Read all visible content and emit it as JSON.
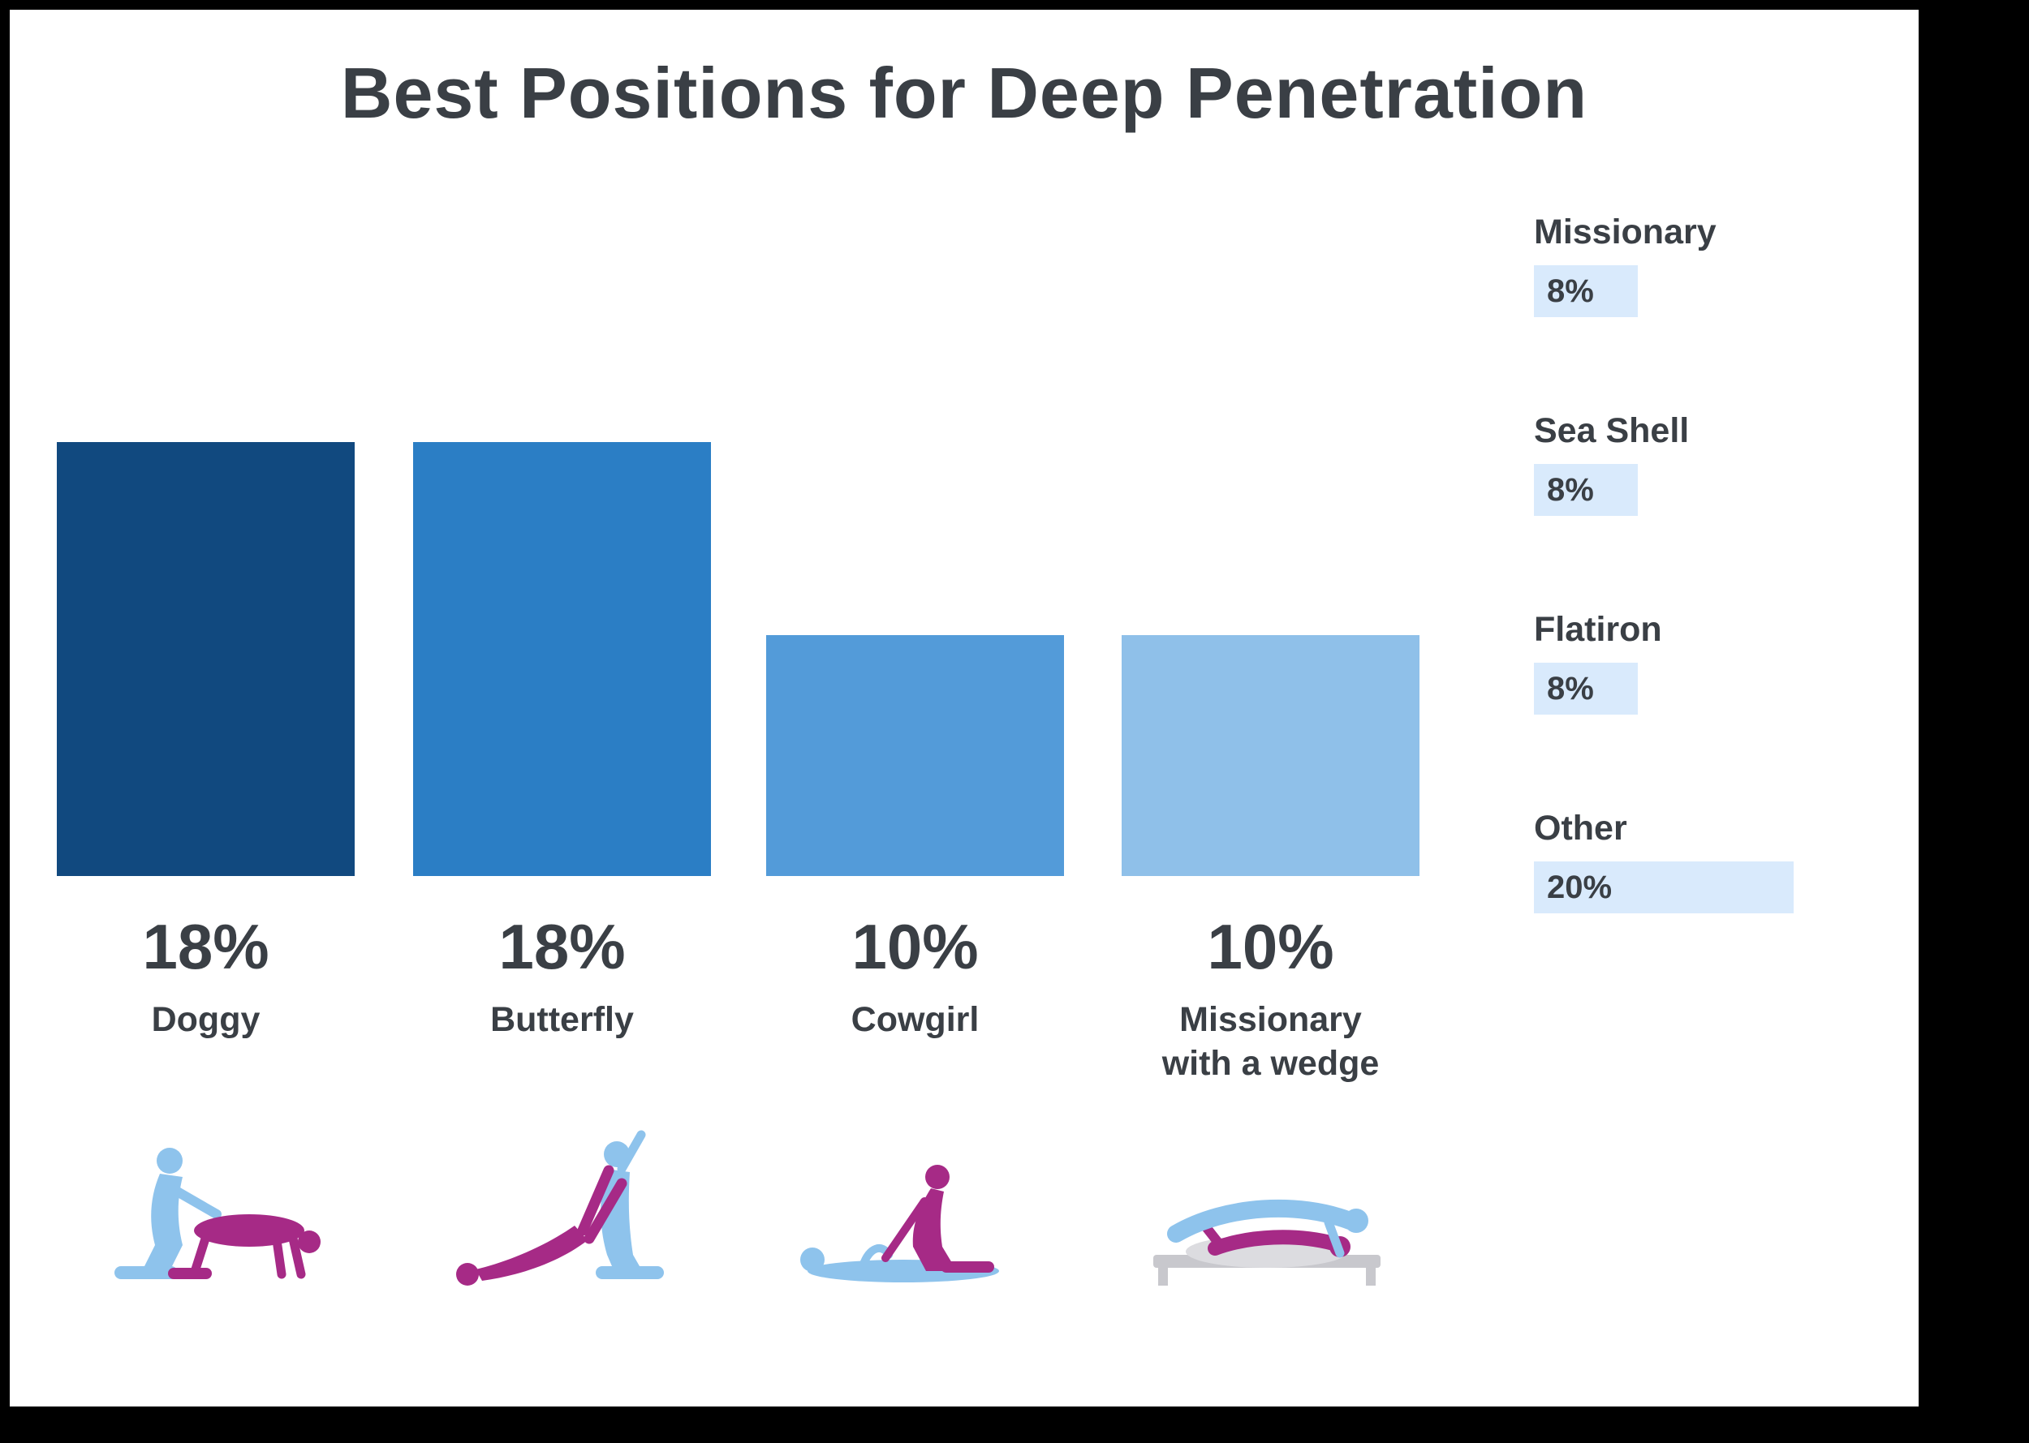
{
  "title": "Best Positions for Deep Penetration",
  "colors": {
    "frame": "#000000",
    "card": "#ffffff",
    "text": "#3a3f45",
    "side_bar_fill": "#d9eafc",
    "figure_blue": "#8ec3ec",
    "figure_magenta": "#a62a86",
    "bed_gray": "#c8c8cd"
  },
  "main_bars": [
    {
      "value": 18,
      "value_label": "18%",
      "name": "Doggy",
      "color": "#11497f"
    },
    {
      "value": 18,
      "value_label": "18%",
      "name": "Butterfly",
      "color": "#2b7ec5"
    },
    {
      "value": 10,
      "value_label": "10%",
      "name": "Cowgirl",
      "color": "#539bd9"
    },
    {
      "value": 10,
      "value_label": "10%",
      "name": "Missionary with a wedge",
      "color": "#8fc0e9"
    }
  ],
  "side_bars": [
    {
      "value": 8,
      "value_label": "8%",
      "name": "Missionary"
    },
    {
      "value": 8,
      "value_label": "8%",
      "name": "Sea Shell"
    },
    {
      "value": 8,
      "value_label": "8%",
      "name": "Flatiron"
    },
    {
      "value": 20,
      "value_label": "20%",
      "name": "Other"
    }
  ],
  "chart_data": {
    "type": "bar",
    "title": "Best Positions for Deep Penetration",
    "categories": [
      "Doggy",
      "Butterfly",
      "Cowgirl",
      "Missionary with a wedge",
      "Missionary",
      "Sea Shell",
      "Flatiron",
      "Other"
    ],
    "values": [
      18,
      18,
      10,
      10,
      8,
      8,
      8,
      20
    ],
    "unit": "percent",
    "xlabel": "",
    "ylabel": "",
    "grid": false,
    "legend_position": "none",
    "layout_hint": "Four large vertical bars on the left with percentage labels and position names below each, plus small position illustrations; four small horizontal bars on the right (Missionary, Sea Shell, Flatiron, Other) with percentage labels inside the bars"
  }
}
